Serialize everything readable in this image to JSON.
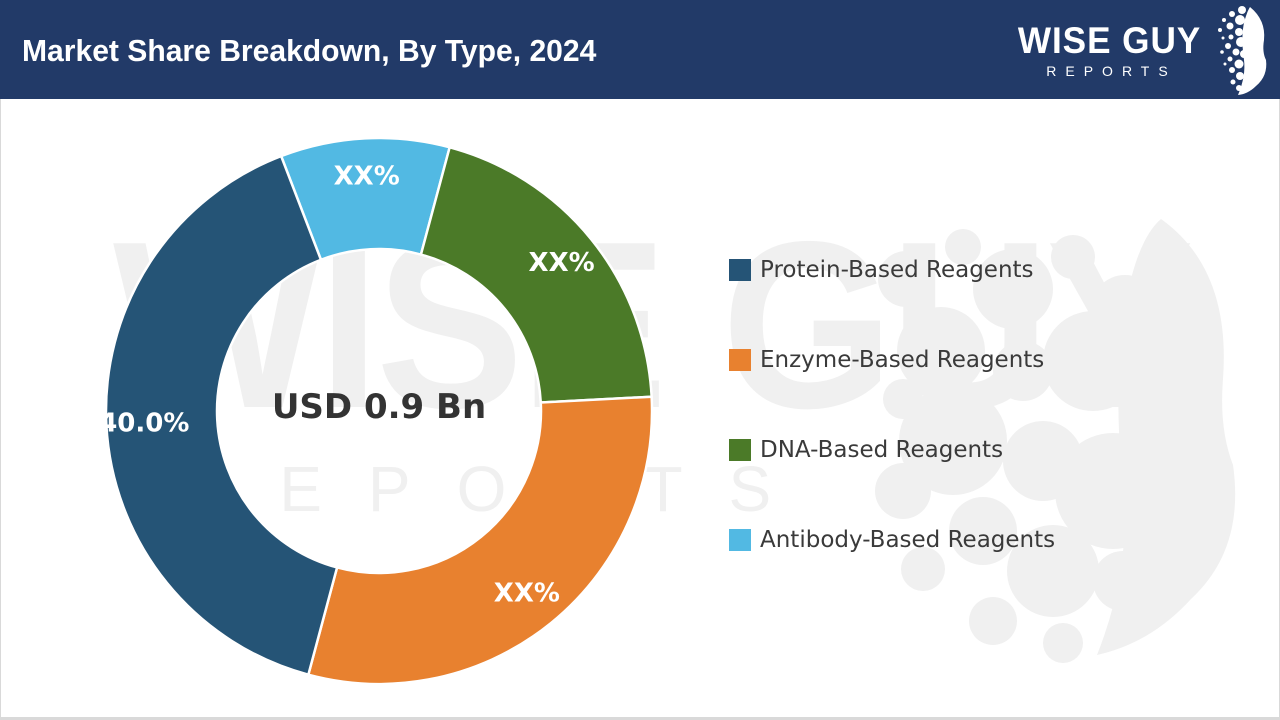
{
  "header": {
    "title": "Market Share Breakdown, By Type, 2024",
    "bg_color": "#223A68",
    "logo": {
      "line1": "WISE GUY",
      "line2": "REPORTS"
    }
  },
  "watermark": {
    "line1": "WISE GUY",
    "line2": "REPORTS"
  },
  "chart_data": {
    "type": "pie",
    "subtype": "donut",
    "title": "Market Share Breakdown, By Type, 2024",
    "center_label": "USD 0.9 Bn",
    "start_angle_deg": -21,
    "direction": "clockwise",
    "legend_position": "right",
    "segments": [
      {
        "name": "Antibody-Based Reagents",
        "value_pct": 10,
        "label": "XX%",
        "color": "#52B9E3"
      },
      {
        "name": "DNA-Based Reagents",
        "value_pct": 20,
        "label": "XX%",
        "color": "#4B7A28"
      },
      {
        "name": "Enzyme-Based Reagents",
        "value_pct": 30,
        "label": "XX%",
        "color": "#E8812F"
      },
      {
        "name": "Protein-Based Reagents",
        "value_pct": 40,
        "label": "40.0%",
        "color": "#255476"
      }
    ],
    "legend": [
      {
        "label": "Protein-Based Reagents",
        "color": "#255476"
      },
      {
        "label": "Enzyme-Based Reagents",
        "color": "#E8812F"
      },
      {
        "label": "DNA-Based Reagents",
        "color": "#4B7A28"
      },
      {
        "label": "Antibody-Based Reagents",
        "color": "#52B9E3"
      }
    ]
  }
}
